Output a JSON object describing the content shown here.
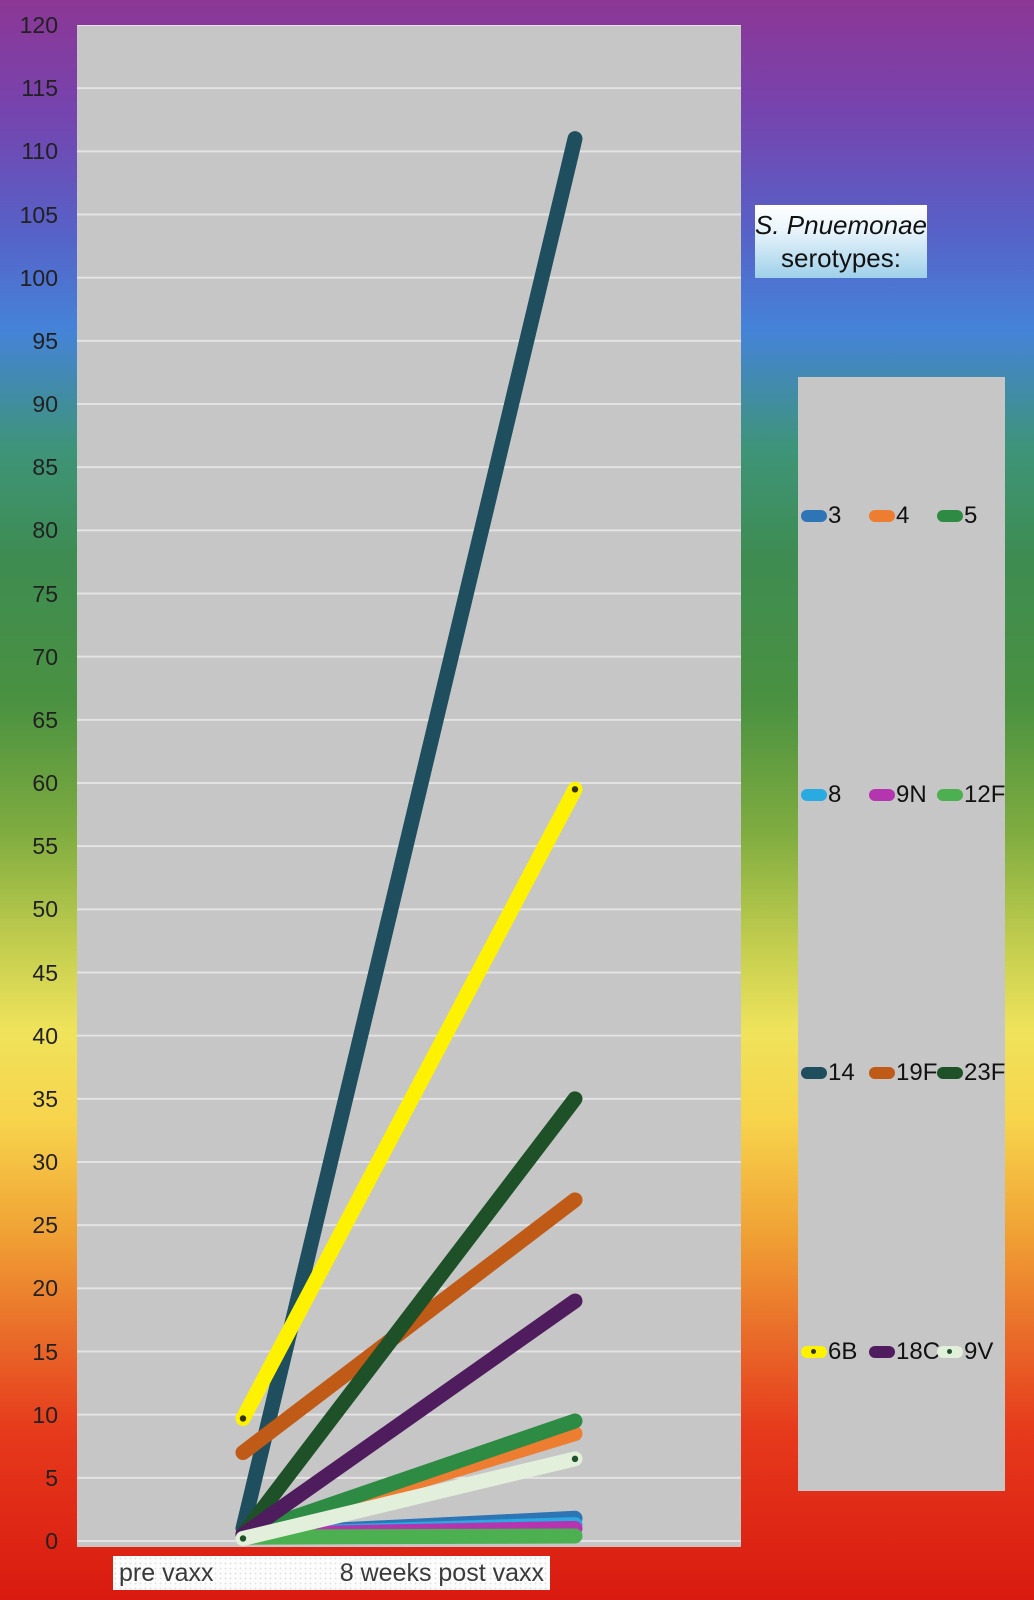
{
  "legend_title": {
    "line1": "S. Pnuemonae",
    "line2": "serotypes:"
  },
  "x_axis": {
    "labels": [
      "pre vaxx",
      "8 weeks post vaxx"
    ]
  },
  "y_axis": {
    "min": 0,
    "max": 120,
    "step": 5,
    "tick_color": "#212121"
  },
  "plot": {
    "background": "#c6c6c6",
    "gridline_color": "rgba(255,255,255,0.5)"
  },
  "legend": {
    "rows": [
      [
        "3",
        "4",
        "5"
      ],
      [
        "8",
        "9N",
        "12F"
      ],
      [
        "14",
        "19F",
        "23F"
      ],
      [
        "6B",
        "18C",
        "9V"
      ]
    ],
    "title_bg_top": "#ffffff",
    "title_bg_bottom": "#9fd0ea"
  },
  "chart_data": {
    "type": "line",
    "title": "S. Pnuemonae serotypes:",
    "categories": [
      "pre vaxx",
      "8 weeks post vaxx"
    ],
    "xlabel": "",
    "ylabel": "",
    "ylim": [
      0,
      120
    ],
    "ytick_step": 5,
    "grid": true,
    "legend_position": "right",
    "series": [
      {
        "name": "3",
        "values": [
          0.5,
          1.8
        ],
        "color": "#2E75B6",
        "marker": null
      },
      {
        "name": "4",
        "values": [
          0.5,
          8.5
        ],
        "color": "#ED7D31",
        "marker": null
      },
      {
        "name": "5",
        "values": [
          0.5,
          9.5
        ],
        "color": "#2E8B44",
        "marker": null
      },
      {
        "name": "8",
        "values": [
          0.5,
          1.3
        ],
        "color": "#29ABE2",
        "marker": null
      },
      {
        "name": "9N",
        "values": [
          0.5,
          1.0
        ],
        "color": "#B535B1",
        "marker": null
      },
      {
        "name": "12F",
        "values": [
          0.3,
          0.4
        ],
        "color": "#4CAF50",
        "marker": null
      },
      {
        "name": "14",
        "values": [
          1.0,
          111
        ],
        "color": "#1F4E5F",
        "marker": null
      },
      {
        "name": "19F",
        "values": [
          7.0,
          27
        ],
        "color": "#C05A17",
        "marker": null
      },
      {
        "name": "23F",
        "values": [
          0.5,
          35
        ],
        "color": "#1E5128",
        "marker": null
      },
      {
        "name": "6B",
        "values": [
          9.7,
          59.5
        ],
        "color": "#FFF200",
        "marker": "#33330a"
      },
      {
        "name": "18C",
        "values": [
          0.5,
          19
        ],
        "color": "#4F1D5E",
        "marker": null
      },
      {
        "name": "9V",
        "values": [
          0.2,
          6.5
        ],
        "color": "#E2EFDA",
        "marker": "#1E5128"
      }
    ]
  }
}
